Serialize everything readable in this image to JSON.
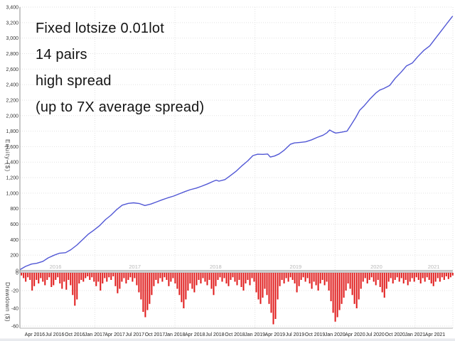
{
  "annotation": {
    "lines": [
      "Fixed lotsize 0.01lot",
      "14 pairs",
      "high spread",
      "(up to 7X average spread)"
    ]
  },
  "colors": {
    "equity_line": "#5157d5",
    "drawdown_bar": "#e01a1a",
    "gridline": "#e2e2e2",
    "year_label": "#b8b8b8",
    "axis_label": "#333333",
    "separator_band": "#c9c9c9",
    "spine": "#8f8f8f",
    "bottom_strip": "#e8eaee"
  },
  "x_axis": {
    "tick_months": [
      3,
      6,
      9,
      12,
      15,
      18,
      21,
      24,
      27,
      30,
      33,
      36,
      39,
      42,
      45,
      48,
      51,
      54,
      57,
      60,
      63
    ],
    "tick_labels": [
      "Apr 2016",
      "Jul 2016",
      "Oct 2016",
      "Jan 2017",
      "Apr 2017",
      "Jul 2017",
      "Oct 2017",
      "Jan 2018",
      "Apr 2018",
      "Jul 2018",
      "Oct 2018",
      "Jan 2019",
      "Apr 2019",
      "Jul 2019",
      "Oct 2019",
      "Jan 2020",
      "Apr 2020",
      "Jul 2020",
      "Oct 2020",
      "Jan 2021",
      "Apr 2021"
    ],
    "gridline_months": [
      12,
      24,
      36,
      48,
      60
    ],
    "year_labels": [
      {
        "text": "2016",
        "month": 6.1
      },
      {
        "text": "2017",
        "month": 18.0
      },
      {
        "text": "2018",
        "month": 30.1
      },
      {
        "text": "2019",
        "month": 42.1
      },
      {
        "text": "2020",
        "month": 54.2
      },
      {
        "text": "2021",
        "month": 62.8
      }
    ]
  },
  "chart_data": [
    {
      "type": "line",
      "name": "equity",
      "ylabel": "Equity ($)",
      "ylim": [
        0,
        3400
      ],
      "ytick_values": [
        0,
        200,
        400,
        600,
        800,
        1000,
        1200,
        1400,
        1600,
        1800,
        2000,
        2200,
        2400,
        2600,
        2800,
        3000,
        3200,
        3400
      ],
      "ytick_labels": [
        "0",
        "200",
        "400",
        "600",
        "800",
        "1,000",
        "1,200",
        "1,400",
        "1,600",
        "1,800",
        "2,000",
        "2,200",
        "2,400",
        "2,600",
        "2,800",
        "3,000",
        "3,200",
        "3,400"
      ],
      "x_months": [
        0.8,
        1.6,
        2.5,
        3.3,
        4.2,
        5.0,
        5.9,
        6.7,
        7.6,
        8.4,
        9.3,
        10.1,
        11.0,
        11.8,
        12.7,
        13.6,
        14.4,
        15.3,
        16.1,
        17.0,
        17.8,
        18.7,
        19.5,
        20.4,
        21.2,
        22.1,
        22.9,
        23.8,
        24.6,
        25.5,
        26.3,
        27.2,
        28.0,
        28.9,
        29.8,
        30.2,
        30.6,
        31.5,
        32.3,
        33.2,
        34.0,
        34.9,
        35.7,
        36.4,
        37.2,
        37.9,
        38.3,
        38.9,
        39.6,
        40.4,
        41.3,
        41.9,
        42.8,
        43.6,
        44.5,
        45.3,
        46.2,
        46.8,
        47.2,
        47.7,
        48.1,
        48.9,
        49.8,
        50.4,
        51.1,
        51.7,
        52.4,
        53.2,
        54.1,
        54.7,
        55.3,
        56.2,
        57.0,
        57.9,
        58.7,
        59.6,
        60.4,
        61.3,
        62.2,
        63.0,
        63.9,
        64.7,
        65.6
      ],
      "values": [
        15,
        55,
        85,
        95,
        120,
        165,
        200,
        225,
        232,
        270,
        330,
        395,
        470,
        520,
        580,
        660,
        715,
        790,
        845,
        868,
        875,
        865,
        840,
        860,
        885,
        915,
        938,
        962,
        990,
        1020,
        1045,
        1065,
        1090,
        1120,
        1155,
        1168,
        1155,
        1175,
        1225,
        1285,
        1350,
        1415,
        1485,
        1502,
        1500,
        1505,
        1465,
        1478,
        1505,
        1555,
        1630,
        1648,
        1655,
        1662,
        1688,
        1718,
        1748,
        1780,
        1815,
        1790,
        1775,
        1785,
        1800,
        1880,
        1975,
        2070,
        2130,
        2210,
        2290,
        2330,
        2350,
        2390,
        2480,
        2560,
        2640,
        2680,
        2760,
        2840,
        2900,
        2990,
        3090,
        3180,
        3280
      ]
    },
    {
      "type": "bar",
      "name": "drawdown",
      "ylabel": "Drawdown ($)",
      "ylim": [
        -62,
        0
      ],
      "ytick_values": [
        0,
        -20,
        -40,
        -60
      ],
      "ytick_labels": [
        "0",
        "-20",
        "-40",
        "-60"
      ],
      "x_start_month": 1.0,
      "x_step_month": 0.32,
      "values": [
        -3,
        -6,
        -10,
        -5,
        -8,
        -20,
        -15,
        -8,
        -12,
        -6,
        -10,
        -14,
        -8,
        -5,
        -16,
        -14,
        -8,
        -5,
        -12,
        -18,
        -10,
        -19,
        -8,
        -14,
        -25,
        -37,
        -30,
        -12,
        -8,
        -10,
        -6,
        -4,
        -8,
        -5,
        -10,
        -15,
        -10,
        -20,
        -12,
        -6,
        -10,
        -5,
        -8,
        -4,
        -15,
        -23,
        -18,
        -10,
        -6,
        -12,
        -8,
        -5,
        -10,
        -6,
        -14,
        -22,
        -30,
        -44,
        -50,
        -42,
        -35,
        -25,
        -15,
        -8,
        -12,
        -6,
        -10,
        -5,
        -8,
        -15,
        -10,
        -6,
        -12,
        -18,
        -25,
        -33,
        -40,
        -30,
        -20,
        -12,
        -18,
        -22,
        -14,
        -8,
        -12,
        -6,
        -10,
        -14,
        -8,
        -18,
        -25,
        -15,
        -8,
        -5,
        -10,
        -6,
        -12,
        -15,
        -8,
        -5,
        -10,
        -14,
        -8,
        -16,
        -20,
        -12,
        -8,
        -14,
        -6,
        -10,
        -22,
        -30,
        -35,
        -28,
        -18,
        -25,
        -35,
        -45,
        -58,
        -52,
        -30,
        -15,
        -8,
        -12,
        -6,
        -10,
        -5,
        -8,
        -12,
        -22,
        -15,
        -8,
        -5,
        -10,
        -6,
        -12,
        -18,
        -10,
        -14,
        -20,
        -12,
        -8,
        -14,
        -10,
        -20,
        -32,
        -45,
        -55,
        -50,
        -42,
        -35,
        -28,
        -20,
        -12,
        -18,
        -25,
        -35,
        -40,
        -30,
        -18,
        -10,
        -6,
        -12,
        -8,
        -5,
        -10,
        -14,
        -8,
        -16,
        -22,
        -28,
        -18,
        -10,
        -6,
        -12,
        -8,
        -5,
        -10,
        -6,
        -12,
        -8,
        -14,
        -10,
        -6,
        -10,
        -5,
        -8,
        -12,
        -6,
        -10,
        -5,
        -8,
        -12,
        -15,
        -10,
        -6,
        -10,
        -5,
        -8,
        -4,
        -7,
        -5,
        -3
      ]
    }
  ]
}
